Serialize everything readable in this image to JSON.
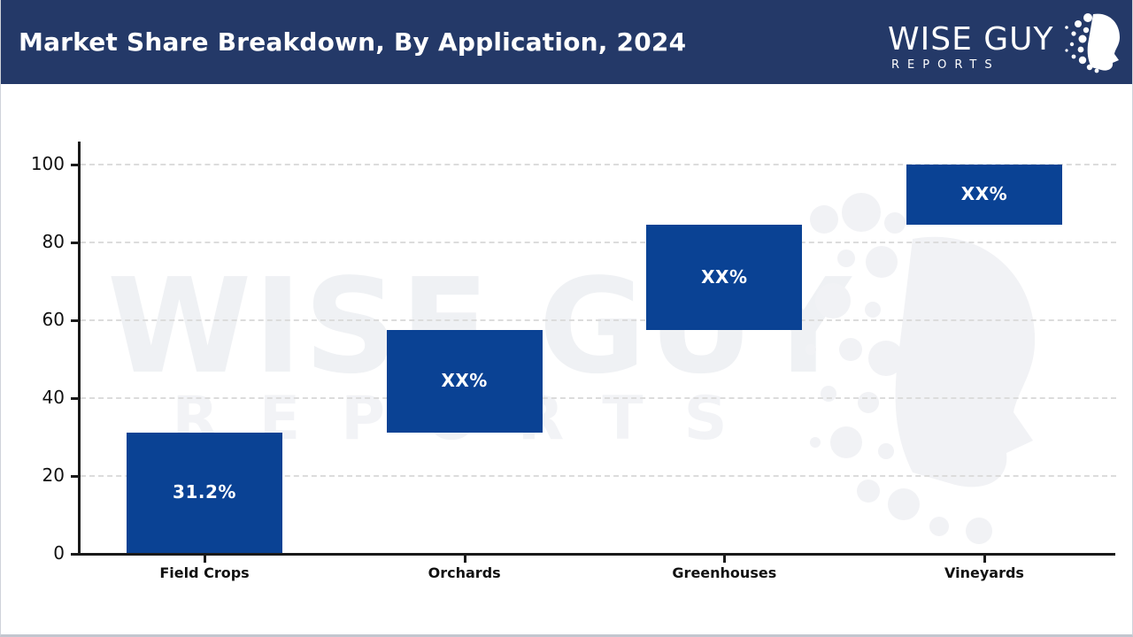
{
  "header": {
    "title": "Market Share Breakdown, By Application, 2024",
    "logo": {
      "brand_top": "WISE GUY",
      "brand_bottom": "REPORTS"
    }
  },
  "watermark": {
    "brand_top": "WISE GUY",
    "brand_bottom": "REPORTS"
  },
  "chart_data": {
    "type": "bar",
    "subtype": "waterfall",
    "title": "Market Share Breakdown, By Application, 2024",
    "categories": [
      "Field Crops",
      "Orchards",
      "Greenhouses",
      "Vineyards"
    ],
    "segments": [
      {
        "category": "Field Crops",
        "start": 0,
        "end": 31.2,
        "label": "31.2%"
      },
      {
        "category": "Orchards",
        "start": 31.2,
        "end": 57.5,
        "label": "XX%"
      },
      {
        "category": "Greenhouses",
        "start": 57.5,
        "end": 84.5,
        "label": "XX%"
      },
      {
        "category": "Vineyards",
        "start": 84.5,
        "end": 100,
        "label": "XX%"
      }
    ],
    "yticks": [
      0,
      20,
      40,
      60,
      80,
      100
    ],
    "ylim": [
      0,
      106
    ],
    "xlabel": "",
    "ylabel": "",
    "legend": "none",
    "grid": "horizontal-dashed",
    "bar_color": "#0a4294",
    "bar_label_color": "#ffffff",
    "axis_color": "#1a1a1a",
    "header_color": "#243968"
  }
}
